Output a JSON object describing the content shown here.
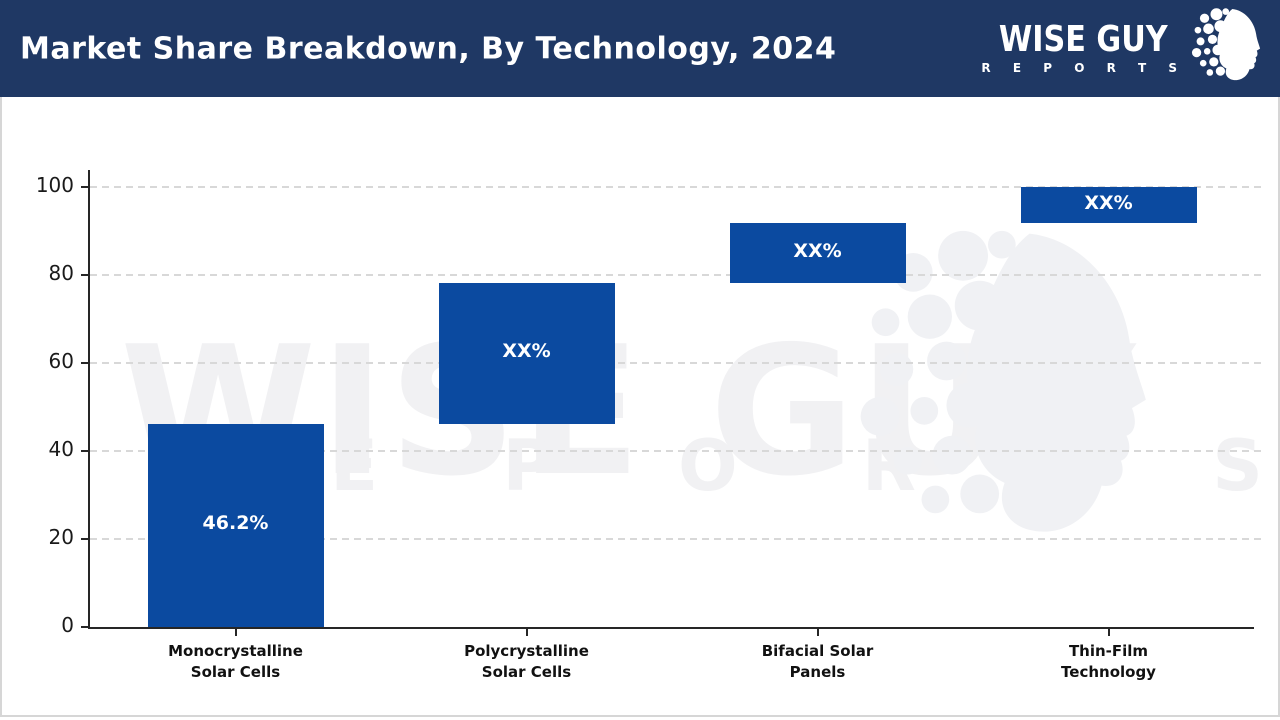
{
  "header": {
    "title": "Market Share Breakdown, By Technology, 2024",
    "logo": {
      "wordmark": "WISE GUY",
      "subtext": "R E P O R T S"
    }
  },
  "watermark": {
    "wordmark": "WISE GUY",
    "subtext": "R E P O R T S"
  },
  "colors": {
    "header_bg": "#1f3864",
    "bar": "#0b4aa0",
    "bar_label": "#ffffff",
    "axis": "#262626",
    "gridline": "#d8d8d8",
    "watermark": "#f1f1f3",
    "face_watermark": "#f0f1f4"
  },
  "chart_data": {
    "type": "bar",
    "subtype": "waterfall",
    "title": "Market Share Breakdown, By Technology, 2024",
    "xlabel": "",
    "ylabel": "",
    "ylim": [
      0,
      100
    ],
    "yticks": [
      0,
      20,
      40,
      60,
      80,
      100
    ],
    "grid": "horizontal-dashed",
    "legend": "none",
    "categories": [
      "Monocrystalline\nSolar Cells",
      "Polycrystalline\nSolar Cells",
      "Bifacial Solar\nPanels",
      "Thin-Film\nTechnology"
    ],
    "segments": [
      {
        "label": "46.2%",
        "start": 0,
        "end": 46.2,
        "value": 46.2
      },
      {
        "label": "XX%",
        "start": 46.2,
        "end": 78.2,
        "value": "masked"
      },
      {
        "label": "XX%",
        "start": 78.2,
        "end": 91.8,
        "value": "masked"
      },
      {
        "label": "XX%",
        "start": 91.8,
        "end": 100,
        "value": "masked"
      }
    ]
  }
}
